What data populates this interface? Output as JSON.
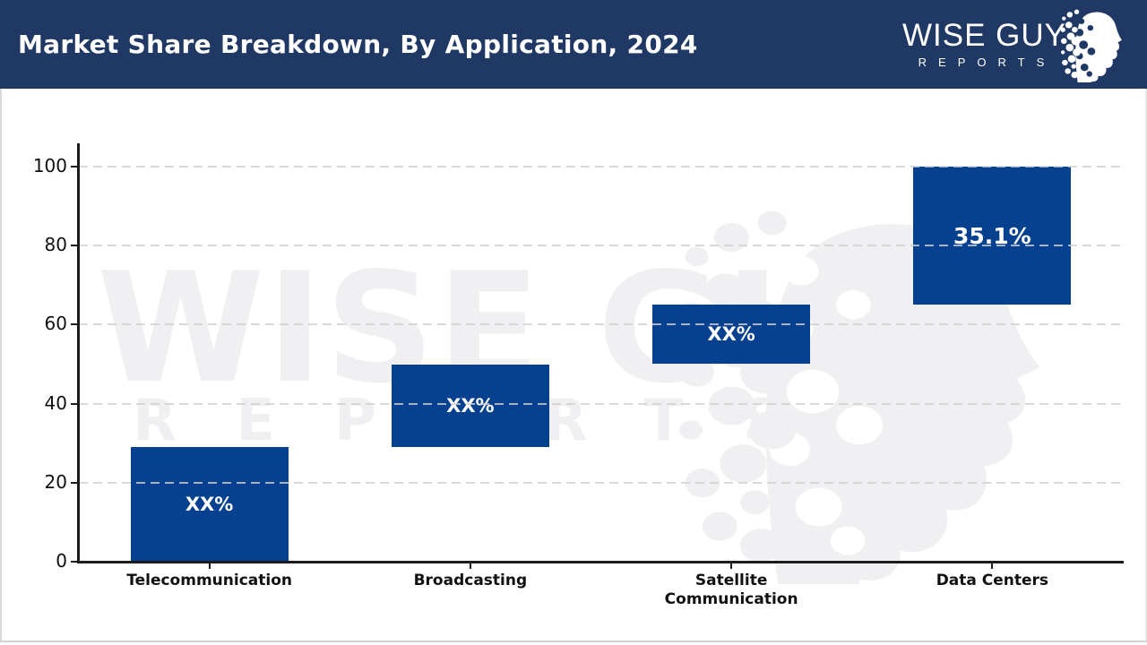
{
  "header": {
    "title": "Market Share Breakdown, By Application, 2024",
    "brand": {
      "line1": "WISE GUY",
      "line2": "REPORTS"
    }
  },
  "watermark": {
    "line1": "WISE GUY",
    "line2": "REPORTS"
  },
  "chart_data": {
    "type": "waterfall",
    "title": "Market Share Breakdown, By Application, 2024",
    "categories": [
      "Telecommunication",
      "Broadcasting",
      "Satellite Communication",
      "Data Centers"
    ],
    "segments": [
      {
        "category": "Telecommunication",
        "start": 0,
        "end": 29,
        "label": "XX%"
      },
      {
        "category": "Broadcasting",
        "start": 29,
        "end": 50,
        "label": "XX%"
      },
      {
        "category": "Satellite Communication",
        "start": 50,
        "end": 65,
        "label": "XX%"
      },
      {
        "category": "Data Centers",
        "start": 65,
        "end": 100,
        "label": "35.1%"
      }
    ],
    "yticks": [
      0,
      20,
      40,
      60,
      80,
      100
    ],
    "ytick_labels": [
      "0",
      "20",
      "40",
      "60",
      "80",
      "100"
    ],
    "ylim": [
      0,
      105
    ],
    "grid": {
      "style": "dashed",
      "lines_at": [
        20,
        40,
        60,
        80,
        100
      ],
      "color": "#d9d9d9"
    },
    "legend": null,
    "colors": {
      "bar": "#05418f",
      "bar_label": "#ffffff",
      "axis": "#1c1c1c",
      "header_bg": "#1f3864",
      "watermark": "#f0f0f2"
    }
  }
}
